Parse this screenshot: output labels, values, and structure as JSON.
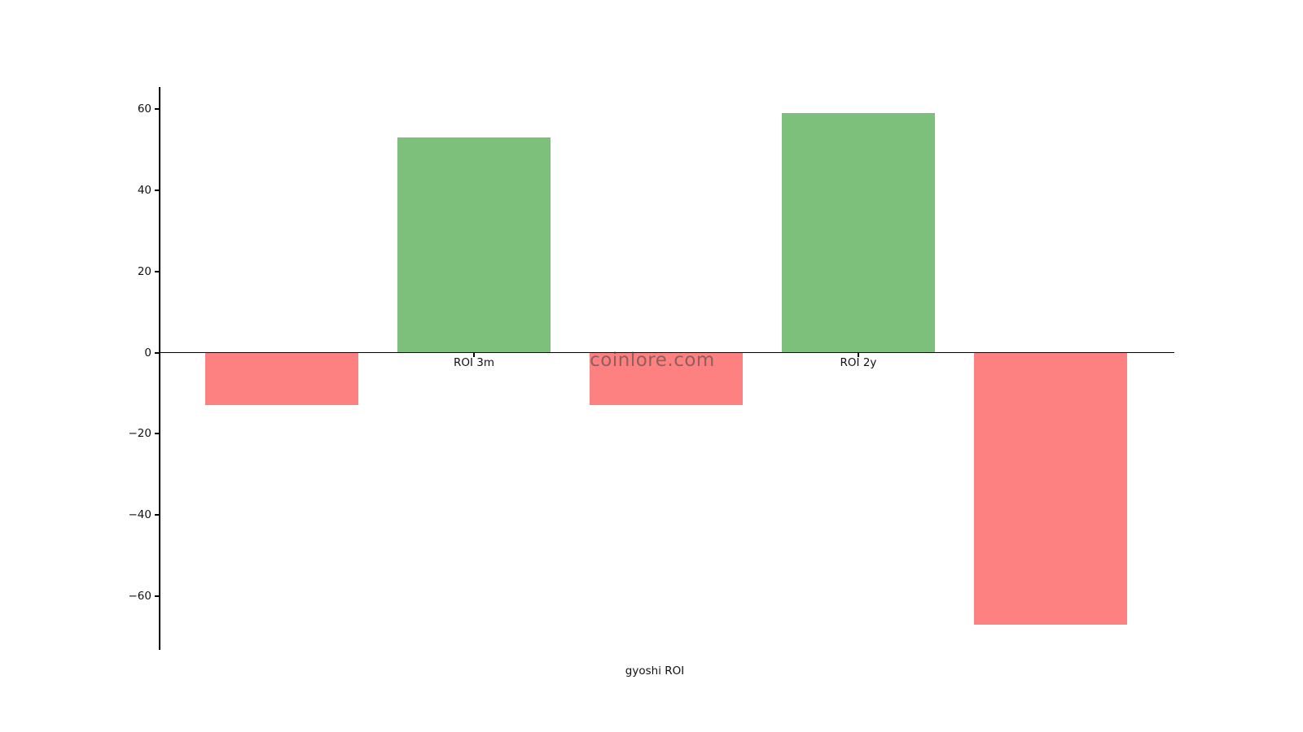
{
  "page": {
    "background": "#ffffff"
  },
  "watermark": {
    "text": "coinlore.com",
    "color": "rgba(68,68,68,0.58)"
  },
  "chart_data": {
    "type": "bar",
    "title": "",
    "xlabel": "gyoshi ROI",
    "ylabel": "",
    "categories": [
      "",
      "ROI 3m",
      "",
      "ROI 2y",
      ""
    ],
    "values": [
      -13,
      53,
      -13,
      59,
      -67
    ],
    "positive_color": "#7cc07c",
    "negative_color": "#fe8181",
    "axis_color": "#000000",
    "text_color": "#111111",
    "y_ticks": [
      60,
      40,
      20,
      0,
      -20,
      -40,
      -60
    ],
    "ylim": [
      -73.3,
      65.3
    ],
    "xlim": [
      -0.64,
      4.64
    ],
    "bar_width": 0.8,
    "grid": false,
    "legend": "none"
  }
}
